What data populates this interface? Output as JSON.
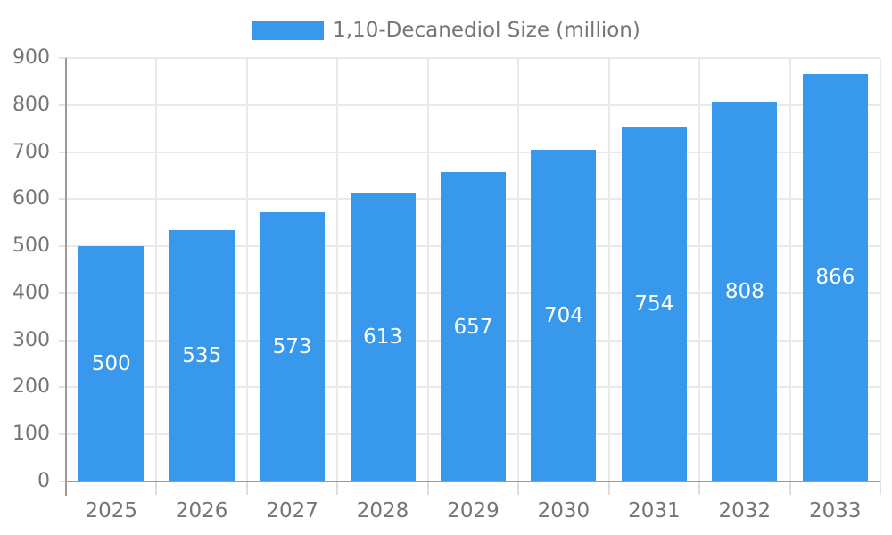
{
  "legend": {
    "label": "1,10-Decanediol Size (million)"
  },
  "colors": {
    "bar": "#3899ec",
    "axis": "#9b9b9b",
    "grid": "#e9e9e9",
    "tick_text": "#757575",
    "value_label": "#ffffff"
  },
  "chart_data": {
    "type": "bar",
    "title": "",
    "legend": "1,10-Decanediol Size (million)",
    "legend_position": "top",
    "categories": [
      "2025",
      "2026",
      "2027",
      "2028",
      "2029",
      "2030",
      "2031",
      "2032",
      "2033"
    ],
    "values": [
      500,
      535,
      573,
      613,
      657,
      704,
      754,
      808,
      866
    ],
    "xlabel": "",
    "ylabel": "",
    "ylim": [
      0,
      900
    ],
    "y_ticks": [
      0,
      100,
      200,
      300,
      400,
      500,
      600,
      700,
      800,
      900
    ],
    "grid": "horizontal gridlines every 100 plus vertical category-boundary gridlines",
    "value_labels": "white, centered vertically and horizontally inside each bar"
  }
}
